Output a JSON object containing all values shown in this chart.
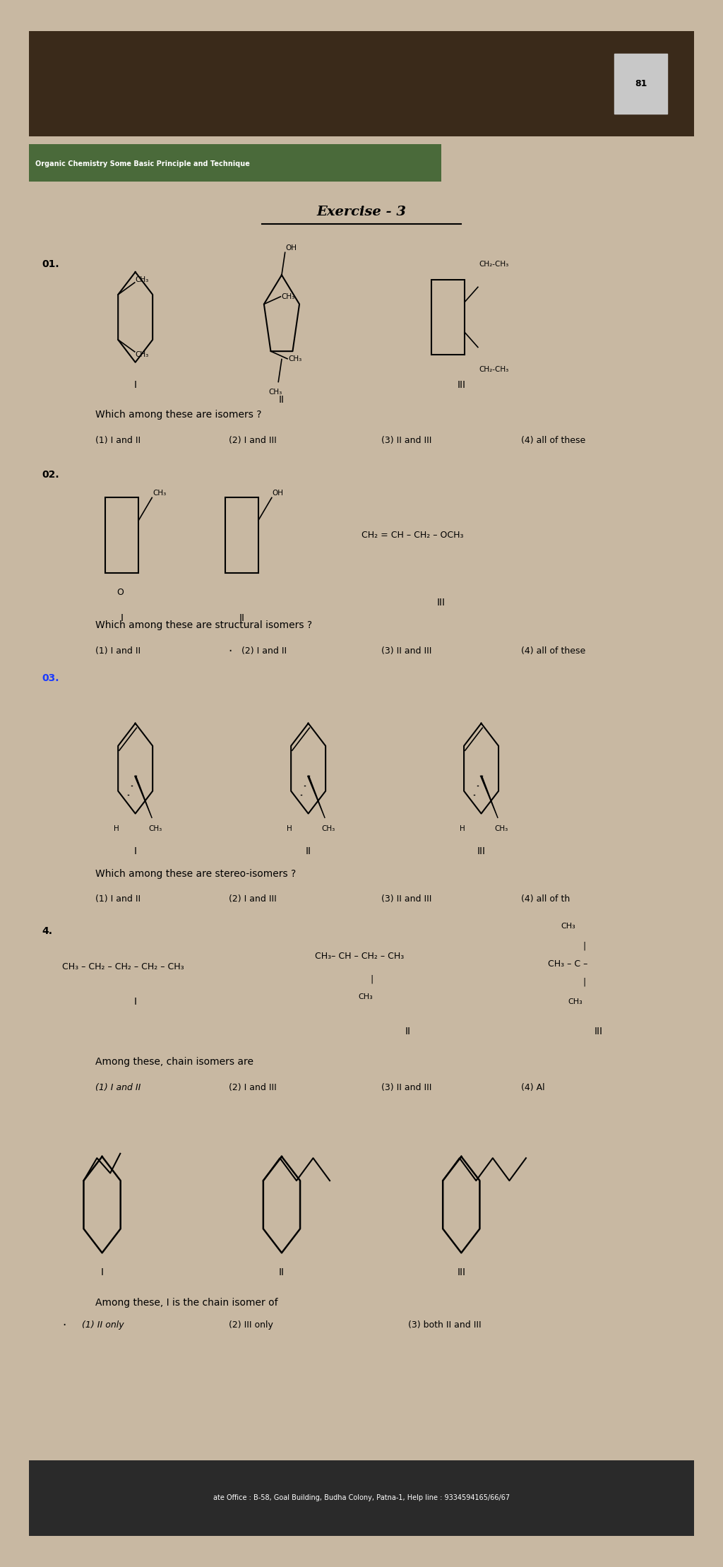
{
  "title": "Exercise - 3",
  "subtitle": "Organic Chemistry Some Basic Principle and Technique",
  "page_num": "81",
  "footer": "ate Office : B-58, Goal Building, Budha Colony, Patna-1, Help line : 9334594165/66/67",
  "q1_label": "01.",
  "q1_question": "Which among these are isomers ?",
  "q1_options": [
    "(1) I and II",
    "(2) I and III",
    "(3) II and III",
    "(4) all of these"
  ],
  "q2_label": "02.",
  "q2_question": "Which among these are structural isomers ?",
  "q2_options": [
    "(1) I and II",
    "(2) I and II",
    "(3) II and III",
    "(4) all of these"
  ],
  "q3_label": "03.",
  "q3_color": "#1a3aff",
  "q3_question": "Which among these are stereo-isomers ?",
  "q3_options": [
    "(1) I and II",
    "(2) I and III",
    "(3) II and III",
    "(4) all of th"
  ],
  "q4_label": "4.",
  "q4_question": "Among these, chain isomers are",
  "q4_options": [
    "(1) I and II",
    "(2) I and III",
    "(3) II and III",
    "(4) Al"
  ],
  "q5_question": "Among these, I is the chain isomer of",
  "q5_options": [
    "(1) II only",
    "(2) III only",
    "(3) both II and III"
  ]
}
